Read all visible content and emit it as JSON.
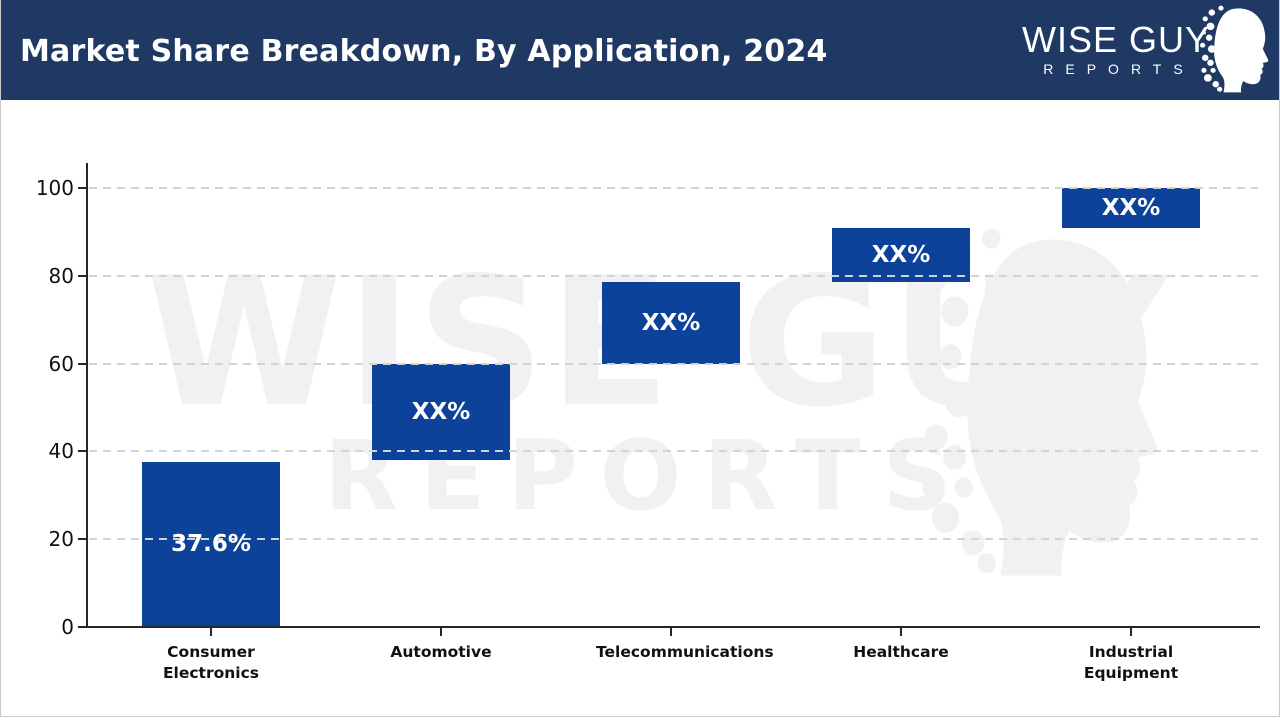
{
  "page": {
    "background": "#ffffff",
    "border_color": "#c9c9c9"
  },
  "header": {
    "background": "#1f3864",
    "title": "Market Share Breakdown, By Application, 2024",
    "logo": {
      "wordmark": "WISE GUY",
      "subtitle": "REPORTS"
    }
  },
  "watermark": {
    "wordmark": "WISE GUY",
    "subtitle": "REPORTS"
  },
  "chart_data": {
    "type": "bar",
    "subtype": "floating-segment-waterfall",
    "title": "Market Share Breakdown, By Application, 2024",
    "categories": [
      "Consumer Electronics",
      "Automotive",
      "Telecommunications",
      "Healthcare",
      "Industrial Equipment"
    ],
    "segments": [
      {
        "start": 0,
        "end": 37.6,
        "label": "37.6%"
      },
      {
        "start": 38,
        "end": 60,
        "label": "XX%"
      },
      {
        "start": 60,
        "end": 78.5,
        "label": "XX%"
      },
      {
        "start": 78.5,
        "end": 91,
        "label": "XX%"
      },
      {
        "start": 91,
        "end": 100,
        "label": "XX%"
      }
    ],
    "y_ticks": [
      0,
      20,
      40,
      60,
      80,
      100
    ],
    "ylim": [
      0,
      100
    ],
    "xlabel": "",
    "ylabel": "",
    "grid": "horizontal-dashed",
    "legend": "none",
    "bar_color": "#0c4299",
    "bar_label_color": "#ffffff",
    "axis_color": "#262626",
    "gridline_color": "#d3d3d3"
  }
}
